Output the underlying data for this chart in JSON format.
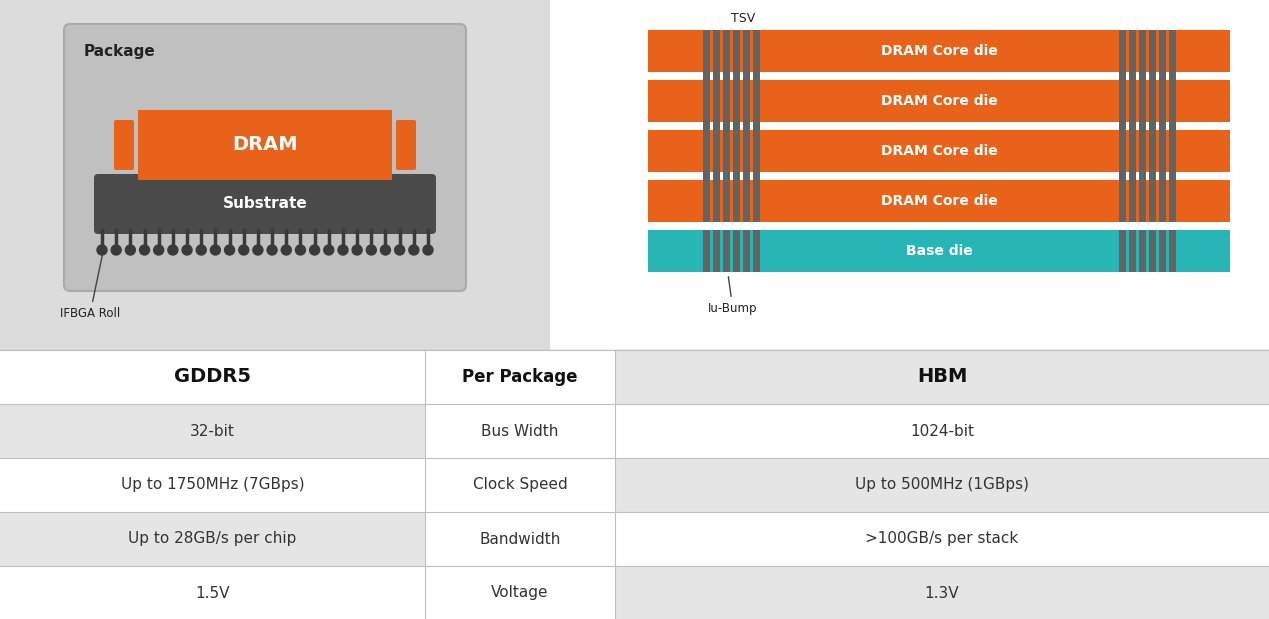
{
  "bg_color": "#dcdcdc",
  "white_bg": "#ffffff",
  "orange_color": "#e8621a",
  "dark_gray": "#4a4a4a",
  "teal_color": "#28b5b5",
  "tsv_gray": "#636363",
  "light_gray_table": "#e5e5e5",
  "pkg_gray": "#c0c0c0",
  "pkg_border": "#aaaaaa",
  "pin_color": "#3a3a3a",
  "gddr5_label": "GDDR5",
  "hbm_label": "HBM",
  "per_package_label": "Per Package",
  "rows": [
    {
      "label": "Bus Width",
      "gddr": "32-bit",
      "hbm": "1024-bit"
    },
    {
      "label": "Clock Speed",
      "gddr": "Up to 1750MHz (7GBps)",
      "hbm": "Up to 500MHz (1GBps)"
    },
    {
      "label": "Bandwidth",
      "gddr": "Up to 28GB/s per chip",
      "hbm": ">100GB/s per stack"
    },
    {
      "label": "Voltage",
      "gddr": "1.5V",
      "hbm": "1.3V"
    }
  ],
  "package_label": "Package",
  "dram_label": "DRAM",
  "substrate_label": "Substrate",
  "ifbga_label": "IFBGA Roll",
  "tsv_label": "TSV",
  "iu_bump_label": "Iu-Bump",
  "base_die_label": "Base die",
  "dram_core_label": "DRAM Core die",
  "fig_w": 12.69,
  "fig_h": 6.19,
  "dpi": 100
}
